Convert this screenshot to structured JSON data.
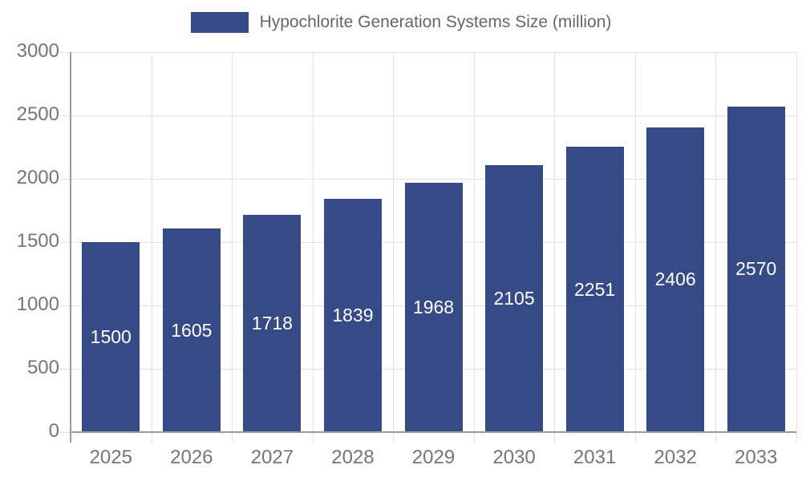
{
  "legend": {
    "series_label": "Hypochlorite Generation Systems Size (million)"
  },
  "chart_data": {
    "type": "bar",
    "title": "Hypochlorite Generation Systems Size (million)",
    "categories": [
      "2025",
      "2026",
      "2027",
      "2028",
      "2029",
      "2030",
      "2031",
      "2032",
      "2033"
    ],
    "values": [
      1500,
      1605,
      1718,
      1839,
      1968,
      2105,
      2251,
      2406,
      2570
    ],
    "series": [
      {
        "name": "Hypochlorite Generation Systems Size (million)",
        "values": [
          1500,
          1605,
          1718,
          1839,
          1968,
          2105,
          2251,
          2406,
          2570
        ]
      }
    ],
    "xlabel": "",
    "ylabel": "",
    "ylim": [
      0,
      3000
    ],
    "yticks": [
      0,
      500,
      1000,
      1500,
      2000,
      2500,
      3000
    ],
    "grid": true,
    "legend_position": "top-center",
    "value_labels_inside_bars": true,
    "colors": {
      "bar": "#364A85",
      "value_label": "#FFFFFF",
      "axis_tick_label": "#757575",
      "legend_text": "#666666",
      "gridline": "#E2E2E2",
      "axis_line": "#9B9B9B"
    }
  }
}
